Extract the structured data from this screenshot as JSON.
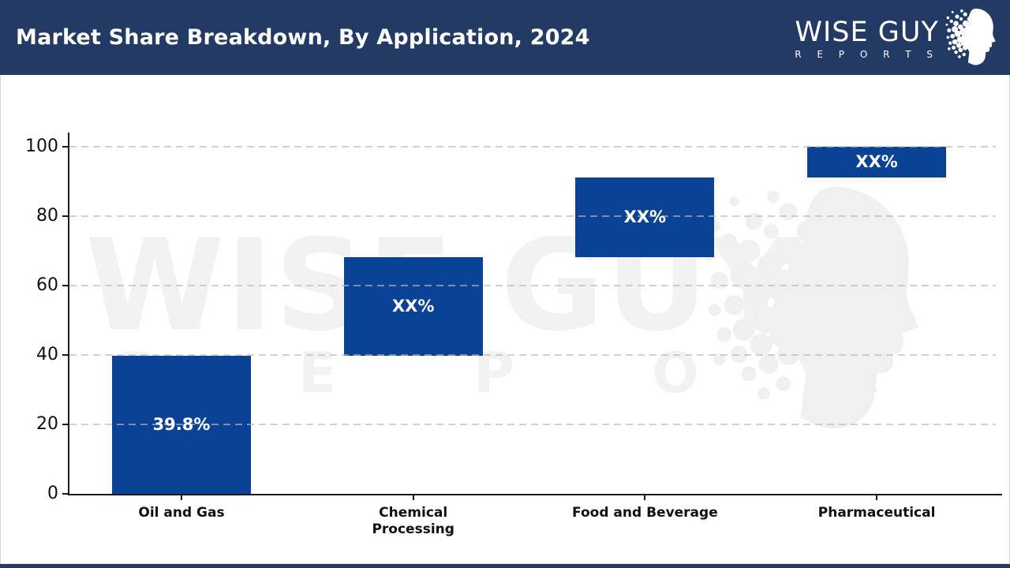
{
  "header": {
    "title": "Market Share Breakdown, By Application, 2024",
    "logo": {
      "line1": "WISE GUY",
      "line2": "R E P O R T S",
      "icon": "dotted-head-profile-icon"
    }
  },
  "watermark": {
    "line1": "WISE GUY",
    "line2": "R E P O R T S",
    "icon": "dotted-head-profile-icon"
  },
  "chart_data": {
    "type": "bar",
    "subtype": "waterfall-stacked-percentage",
    "title": "Market Share Breakdown, By Application, 2024",
    "categories": [
      "Oil and Gas",
      "Chemical\nProcessing",
      "Food and Beverage",
      "Pharmaceutical"
    ],
    "segments": [
      {
        "category": "Oil and Gas",
        "start": 0,
        "end": 39.8,
        "label": "39.8%"
      },
      {
        "category": "Chemical Processing",
        "start": 39.8,
        "end": 68.2,
        "label": "XX%"
      },
      {
        "category": "Food and Beverage",
        "start": 68.2,
        "end": 91.2,
        "label": "XX%"
      },
      {
        "category": "Pharmaceutical",
        "start": 91.2,
        "end": 100,
        "label": "XX%"
      }
    ],
    "ylim": [
      0,
      100
    ],
    "yticks": [
      0,
      20,
      40,
      60,
      80,
      100
    ],
    "xlabel": "",
    "ylabel": "",
    "grid": "horizontal-dashed",
    "legend": false,
    "bar_color": "#0a4296",
    "bar_label_color": "#ffffff",
    "axis_color": "#1a1a1a",
    "header_color": "#223a64"
  }
}
